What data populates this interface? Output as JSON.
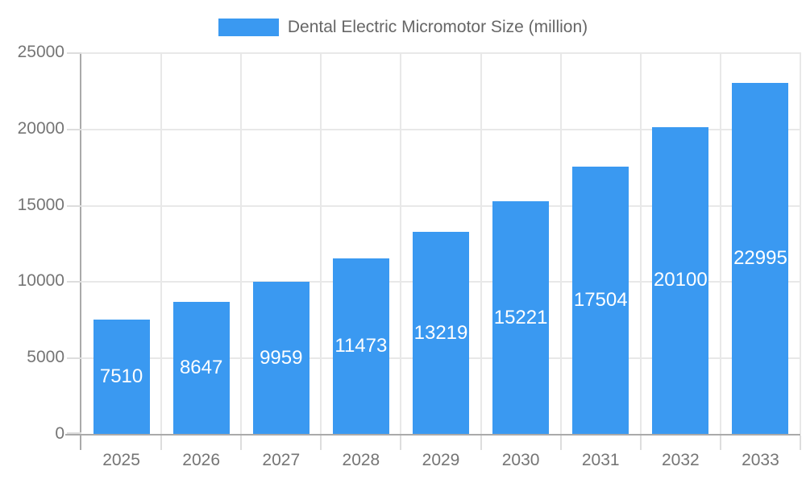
{
  "chart_data": {
    "type": "bar",
    "title": "Dental Electric Micromotor Size (million)",
    "legend": {
      "label": "Dental Electric Micromotor Size (million)",
      "position": "top-center"
    },
    "categories": [
      "2025",
      "2026",
      "2027",
      "2028",
      "2029",
      "2030",
      "2031",
      "2032",
      "2033"
    ],
    "values": [
      7510,
      8647,
      9959,
      11473,
      13219,
      15221,
      17504,
      20100,
      22995
    ],
    "xlabel": "",
    "ylabel": "",
    "ylim": [
      0,
      25000
    ],
    "yticks": [
      0,
      5000,
      10000,
      15000,
      20000,
      25000
    ],
    "grid": true,
    "colors": {
      "bar": "#3a99f1",
      "value_label": "#ffffff",
      "axis_text": "#757575",
      "legend_text": "#666666",
      "gridline": "#e8e8e8",
      "axis_line": "#aaaaaa",
      "background": "#ffffff"
    }
  }
}
